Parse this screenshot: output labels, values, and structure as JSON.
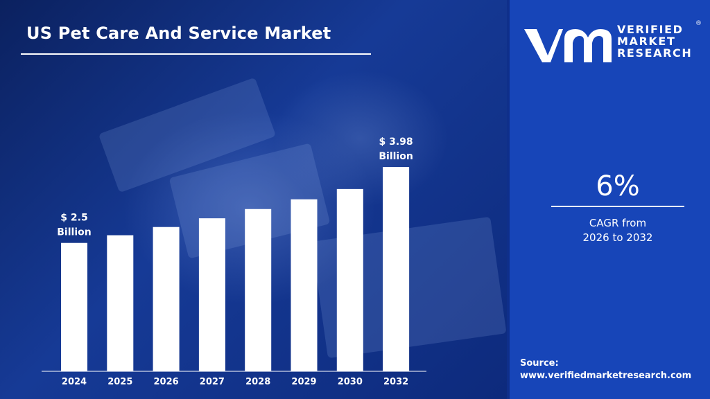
{
  "header": {
    "title": "US Pet Care And Service Market"
  },
  "brand": {
    "line1": "VERIFIED",
    "line2": "MARKET",
    "line3": "RESEARCH",
    "registered": "®"
  },
  "cagr": {
    "value": "6%",
    "label_line1": "CAGR from",
    "label_line2": "2026 to 2032"
  },
  "source": {
    "label": "Source:",
    "url": "www.verifiedmarketresearch.com"
  },
  "colors": {
    "bar": "#ffffff",
    "right_panel": "#1745b8",
    "text": "#ffffff"
  },
  "chart_data": {
    "type": "bar",
    "categories": [
      "2024",
      "2025",
      "2026",
      "2027",
      "2028",
      "2029",
      "2030",
      "2032"
    ],
    "values": [
      2.5,
      2.65,
      2.81,
      2.98,
      3.16,
      3.35,
      3.55,
      3.98
    ],
    "unit": "USD Billion",
    "annotations": [
      {
        "category": "2024",
        "line1": "$ 2.5",
        "line2": "Billion"
      },
      {
        "category": "2032",
        "line1": "$ 3.98",
        "line2": "Billion"
      }
    ],
    "title": "US Pet Care And Service Market",
    "xlabel": "",
    "ylabel": "",
    "grid": false,
    "legend": "none"
  }
}
